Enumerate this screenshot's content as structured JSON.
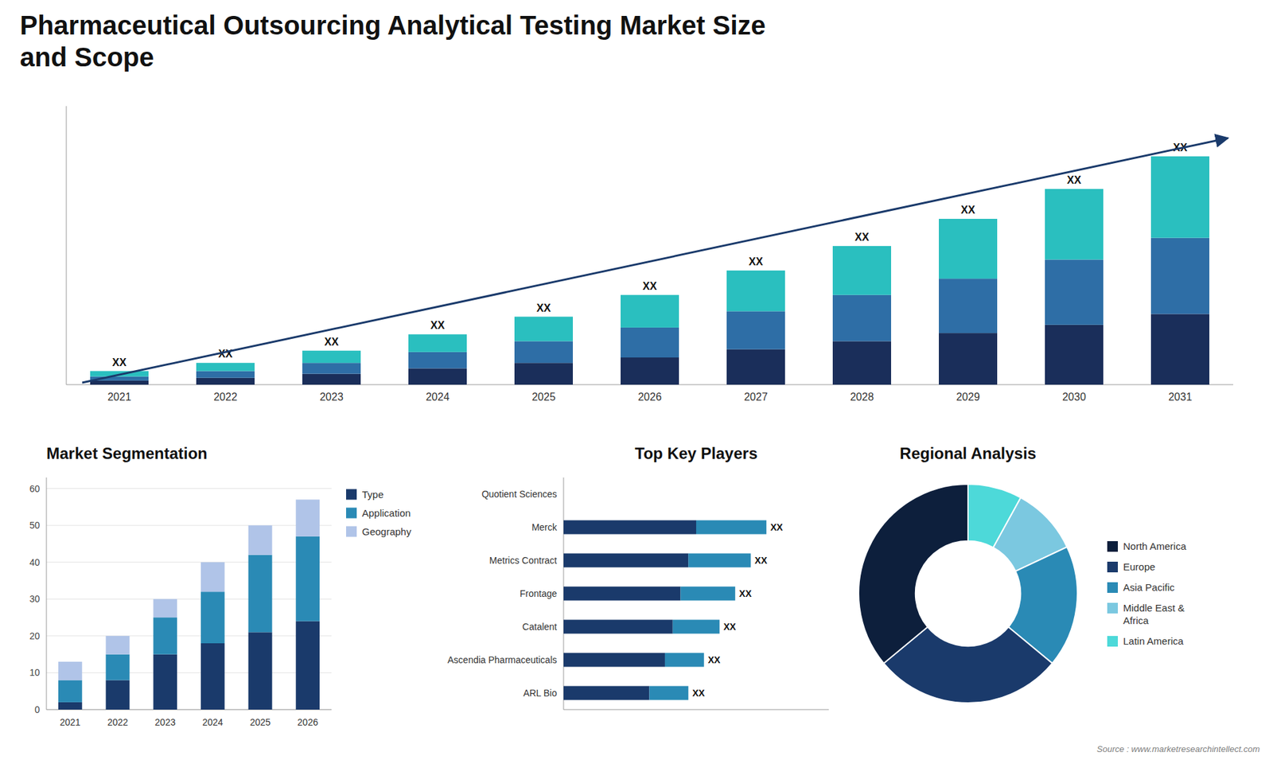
{
  "chart_data": [
    {
      "type": "bar",
      "stacked": true,
      "title": "Pharmaceutical Outsourcing Analytical Testing Market Size\nand Scope",
      "categories": [
        "2021",
        "2022",
        "2023",
        "2024",
        "2025",
        "2026",
        "2027",
        "2028",
        "2029",
        "2030",
        "2031"
      ],
      "series": [
        {
          "color": "#1a2e5a",
          "values": [
            1.5,
            2.5,
            4,
            6,
            8,
            10,
            13,
            16,
            19,
            22,
            26
          ]
        },
        {
          "color": "#2e6ea6",
          "values": [
            1.5,
            2.5,
            4,
            6,
            8,
            11,
            14,
            17,
            20,
            24,
            28
          ]
        },
        {
          "color": "#2abfbf",
          "values": [
            2,
            3,
            4.5,
            6.5,
            9,
            12,
            15,
            18,
            22,
            26,
            30
          ]
        }
      ],
      "annotations": [
        "XX",
        "XX",
        "XX",
        "XX",
        "XX",
        "XX",
        "XX",
        "XX",
        "XX",
        "XX",
        "XX"
      ],
      "ylim": [
        0,
        102.48
      ],
      "yticks": [],
      "tick_labels": "x",
      "grid": false
    },
    {
      "type": "bar",
      "stacked": true,
      "title": "Market Segmentation",
      "categories": [
        "2021",
        "2022",
        "2023",
        "2024",
        "2025",
        "2026"
      ],
      "series": [
        {
          "name": "Type",
          "color": "#1a3a6b",
          "values": [
            2,
            8,
            15,
            18,
            21,
            24
          ]
        },
        {
          "name": "Application",
          "color": "#2a8ab5",
          "values": [
            6,
            7,
            10,
            14,
            21,
            23
          ]
        },
        {
          "name": "Geography",
          "color": "#b0c4e8",
          "values": [
            5,
            5,
            5,
            8,
            8,
            10
          ]
        }
      ],
      "ylim": [
        0,
        63
      ],
      "yticks": [
        0,
        10,
        20,
        30,
        40,
        50,
        60
      ],
      "grid": true,
      "legend": "right"
    },
    {
      "type": "bar",
      "stacked": true,
      "orientation": "horizontal",
      "title": "Top Key Players",
      "categories": [
        "Quotient Sciences",
        "Merck",
        "Metrics Contract",
        "Frontage",
        "Catalent",
        "Ascendia Pharmaceuticals",
        "ARL Bio"
      ],
      "series": [
        {
          "color": "#1a3a6b",
          "values": [
            0,
            8.5,
            8.0,
            7.5,
            7.0,
            6.5,
            5.5
          ]
        },
        {
          "color": "#2a8ab5",
          "values": [
            0,
            4.5,
            4.0,
            3.5,
            3.0,
            2.5,
            2.5
          ]
        }
      ],
      "annotations": [
        null,
        "XX",
        "XX",
        "XX",
        "XX",
        "XX",
        "XX"
      ],
      "xlim": [
        0,
        17
      ],
      "xticks": [],
      "tick_labels": "y",
      "grid": false
    },
    {
      "type": "pie",
      "title": "Regional Analysis",
      "categories": [
        "Latin America",
        "Middle East &\nAfrica",
        "Asia Pacific",
        "Europe",
        "North America"
      ],
      "values": [
        8,
        10,
        18,
        28,
        36
      ],
      "colors": [
        "#4dd9d9",
        "#7bc8e0",
        "#2a8ab5",
        "#1a3a6b",
        "#0d1f3c"
      ],
      "legend": "right",
      "annotations": [
        "Source : www.marketresearchintellect.com"
      ]
    }
  ]
}
